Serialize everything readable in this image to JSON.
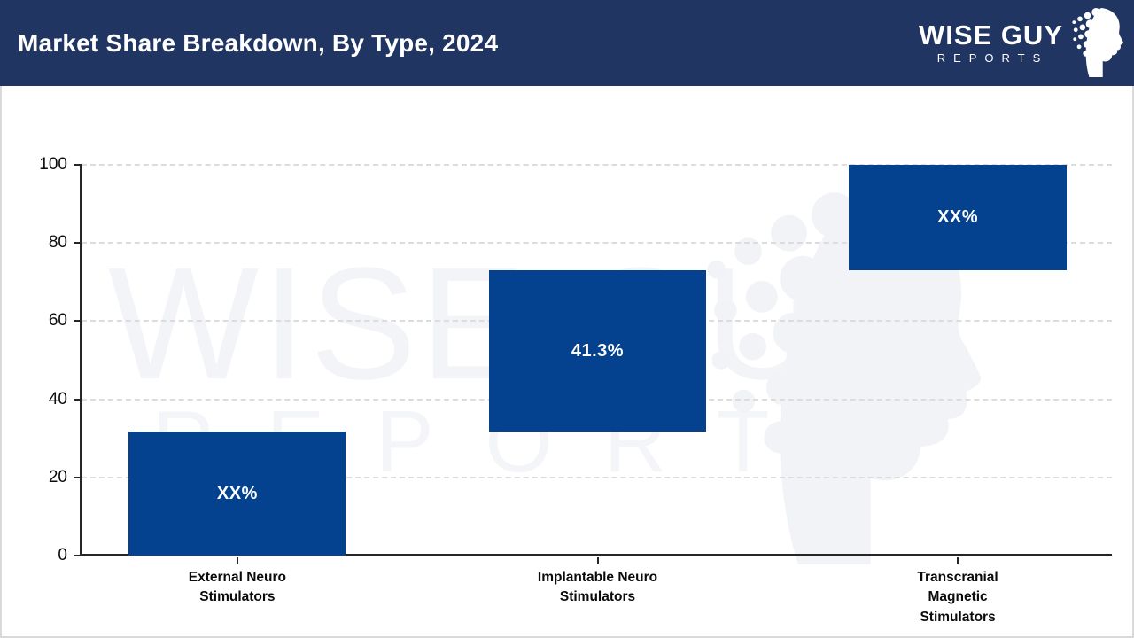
{
  "header": {
    "title": "Market Share Breakdown, By Type, 2024",
    "logo": {
      "line1": "WISE GUY",
      "line2": "REPORTS"
    }
  },
  "watermark": {
    "line1": "WISE GUY",
    "line2": "REPORTS"
  },
  "colors": {
    "header_bg": "#213563",
    "bar": "#04428F",
    "bar_label": "#FFFFFF",
    "axis": "#262626",
    "gridline": "#DCDCDC",
    "frame_border": "#D9D9D9",
    "watermark": "#F3F4F7"
  },
  "chart_data": {
    "type": "bar",
    "variant": "floating-segment waterfall-style bars, values hidden as XX% except middle",
    "title": "Market Share Breakdown, By Type, 2024",
    "categories": [
      "External Neuro Stimulators",
      "Implantable Neuro Stimulators",
      "Transcranial Magnetic Stimulators"
    ],
    "category_label_lines": [
      [
        "External Neuro",
        "Stimulators"
      ],
      [
        "Implantable Neuro",
        "Stimulators"
      ],
      [
        "Transcranial",
        "Magnetic",
        "Stimulators"
      ]
    ],
    "bars": [
      {
        "category": "External Neuro Stimulators",
        "start": 0,
        "end": 31.7,
        "value": 31.7,
        "label": "XX%"
      },
      {
        "category": "Implantable Neuro Stimulators",
        "start": 31.7,
        "end": 73.0,
        "value": 41.3,
        "label": "41.3%"
      },
      {
        "category": "Transcranial Magnetic Stimulators",
        "start": 73.0,
        "end": 100,
        "value": 27.0,
        "label": "XX%"
      }
    ],
    "ylim": [
      0,
      100
    ],
    "yticks": [
      0,
      20,
      40,
      60,
      80,
      100
    ],
    "xlabel": "",
    "ylabel": "",
    "grid": "horizontal dashed",
    "legend": "none",
    "bar_color": "#04428F",
    "bar_label_color": "#FFFFFF"
  }
}
